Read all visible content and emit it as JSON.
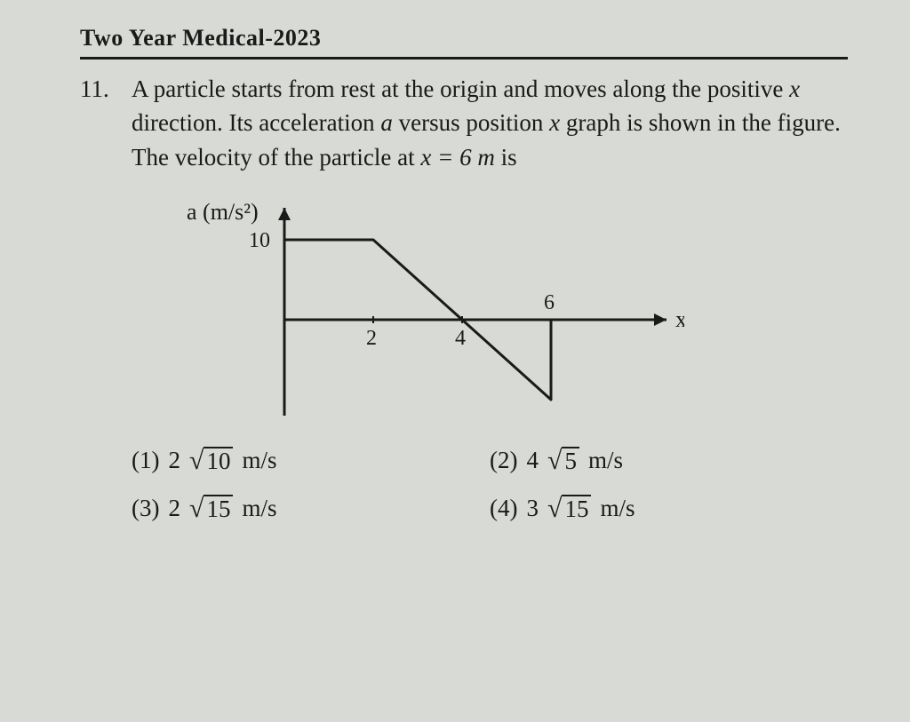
{
  "header": "Two Year Medical-2023",
  "question": {
    "number": "11.",
    "text_parts": {
      "p1": "A particle starts from rest at the origin and moves along the positive ",
      "x": "x",
      "p2": " direction. Its acceleration ",
      "a": "a",
      "p3": " versus position ",
      "x2": "x",
      "p4": " graph is shown in the figure. The velocity of the particle at ",
      "eq": "x = 6 m",
      "p5": " is"
    }
  },
  "figure": {
    "type": "line",
    "y_label": "a (m/s²)",
    "x_label": "x (m)",
    "y_tick_value": "10",
    "x_ticks": [
      "2",
      "4",
      "6"
    ],
    "axis_color": "#1a1a1a",
    "line_color": "#1a1a1a",
    "line_width": 3,
    "background_color": "#d8dad5",
    "segments": [
      {
        "from": [
          0,
          10
        ],
        "to": [
          2,
          10
        ]
      },
      {
        "from": [
          2,
          10
        ],
        "to": [
          4,
          0
        ]
      },
      {
        "from": [
          4,
          0
        ],
        "to": [
          6,
          -10
        ]
      },
      {
        "from": [
          6,
          -10
        ],
        "to": [
          6,
          0
        ]
      }
    ],
    "xlim": [
      0,
      8
    ],
    "ylim": [
      -12,
      14
    ]
  },
  "options": {
    "o1": {
      "label": "(1)",
      "coef": "2",
      "radicand": "10",
      "unit": "m/s"
    },
    "o2": {
      "label": "(2)",
      "coef": "4",
      "radicand": "5",
      "unit": "m/s"
    },
    "o3": {
      "label": "(3)",
      "coef": "2",
      "radicand": "15",
      "unit": "m/s"
    },
    "o4": {
      "label": "(4)",
      "coef": "3",
      "radicand": "15",
      "unit": "m/s"
    }
  }
}
